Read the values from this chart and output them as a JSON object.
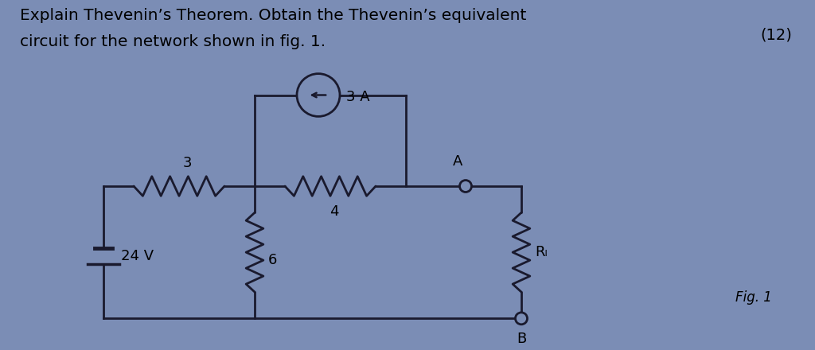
{
  "bg_color": "#7b8db5",
  "title_line1": "Explain Thevenin’s Theorem. Obtain the Thevenin’s equivalent",
  "title_line2": "circuit for the network shown in fig. 1.",
  "marks": "(12)",
  "fig_label": "Fig. 1",
  "title_fontsize": 14.5,
  "marks_fontsize": 14,
  "fig_label_fontsize": 12,
  "label_3": "3",
  "label_6": "6",
  "label_4": "4",
  "label_3A": "3 A",
  "label_24V": "24 V",
  "label_RL": "Rₗ",
  "label_A": "A",
  "label_B": "B",
  "wire_color": "#1a1a2e",
  "lw": 2.0
}
